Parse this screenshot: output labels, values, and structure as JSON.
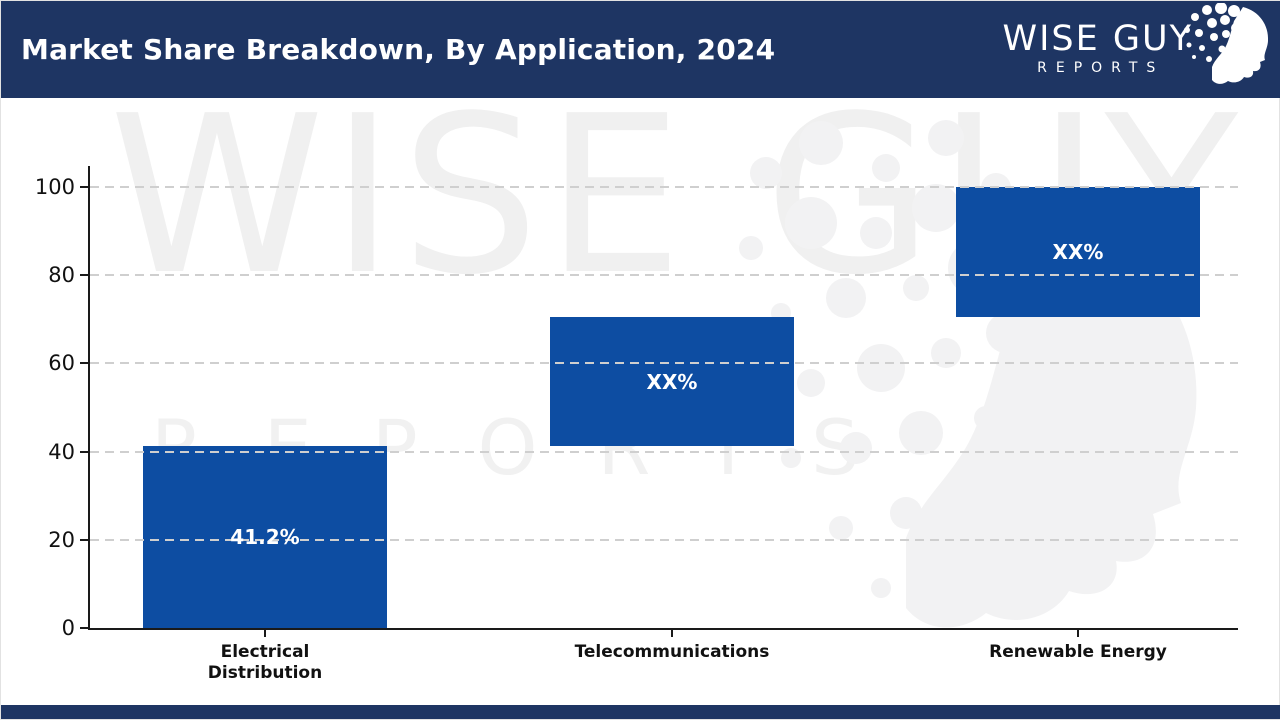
{
  "header": {
    "title": "Market Share Breakdown, By Application, 2024",
    "logo": {
      "line1": "WISE GUY",
      "line2": "REPORTS"
    }
  },
  "watermark": {
    "line1": "WISE GUY",
    "line2": "REPORTS"
  },
  "colors": {
    "header_bg": "#1e3563",
    "footer_bg": "#1e3563",
    "bar": "#0d4da2",
    "gridline": "#cfcfcf",
    "watermark": "#f0f0f0",
    "bar_label_text": "#ffffff",
    "axis_text": "#111111"
  },
  "chart_data": {
    "type": "bar",
    "subtype": "waterfall-stacked-segments",
    "title": "Market Share Breakdown, By Application, 2024",
    "categories": [
      "Electrical Distribution",
      "Telecommunications",
      "Renewable Energy"
    ],
    "bars": [
      {
        "category": "Electrical Distribution",
        "tick_label": "Electrical\nDistribution",
        "start": 0,
        "end": 41.2,
        "label": "41.2%"
      },
      {
        "category": "Telecommunications",
        "tick_label": "Telecommunications",
        "start": 41.2,
        "end": 70.5,
        "label": "XX%"
      },
      {
        "category": "Renewable Energy",
        "tick_label": "Renewable Energy",
        "start": 70.5,
        "end": 100,
        "label": "XX%"
      }
    ],
    "ylim": [
      0,
      100
    ],
    "yticks": [
      "0",
      "20",
      "40",
      "60",
      "80",
      "100"
    ],
    "grid": "horizontal-dashed",
    "legend": "none",
    "bar_color": "#0d4da2"
  }
}
